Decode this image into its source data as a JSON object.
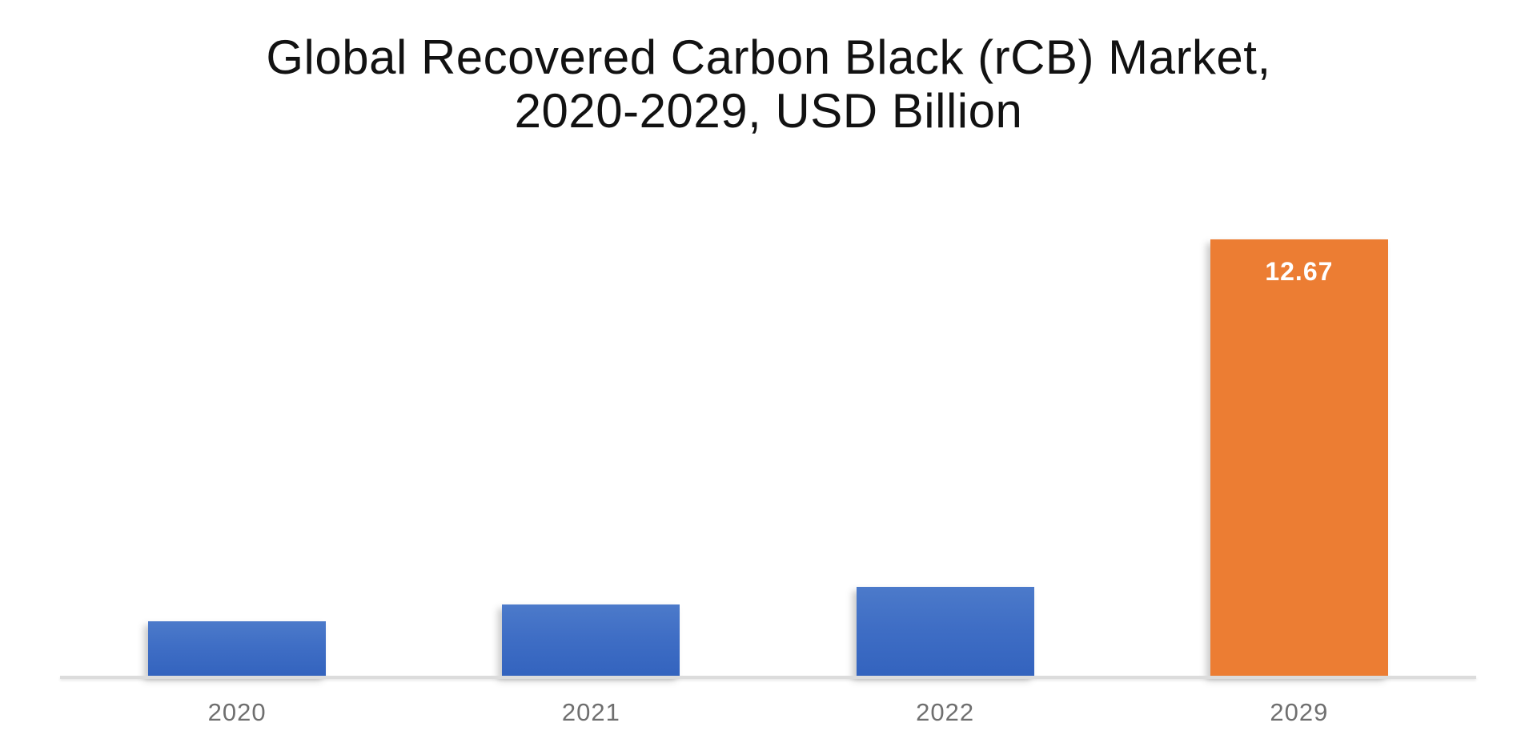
{
  "title": {
    "text": "Global Recovered Carbon Black (rCB) Market, 2020-2029, USD Billion",
    "line1": "Global Recovered Carbon Black (rCB) Market,",
    "line2": "2020-2029, USD Billion"
  },
  "chart_data": {
    "type": "bar",
    "title": "Global Recovered Carbon Black (rCB) Market, 2020-2029, USD Billion",
    "categories": [
      "2020",
      "2021",
      "2022",
      "2029"
    ],
    "values": [
      1.6,
      2.1,
      2.6,
      12.67
    ],
    "data_labels": [
      "",
      "",
      "",
      "12.67"
    ],
    "unit": "USD Billion",
    "xlabel": "",
    "ylabel": "",
    "ylim": [
      0,
      14
    ],
    "grid": false,
    "legend": false,
    "y_axis_visible": false,
    "highlight_index": 3,
    "colors": {
      "bar_blue_top": "#4C7ACA",
      "bar_blue_bottom": "#3363BE",
      "bar_highlight_orange": "#EC7D33",
      "axis_line": "#DCDCDC",
      "tick_label": "#6F6F6F",
      "title_text": "#121212",
      "data_label_text": "#FFFFFF"
    }
  }
}
